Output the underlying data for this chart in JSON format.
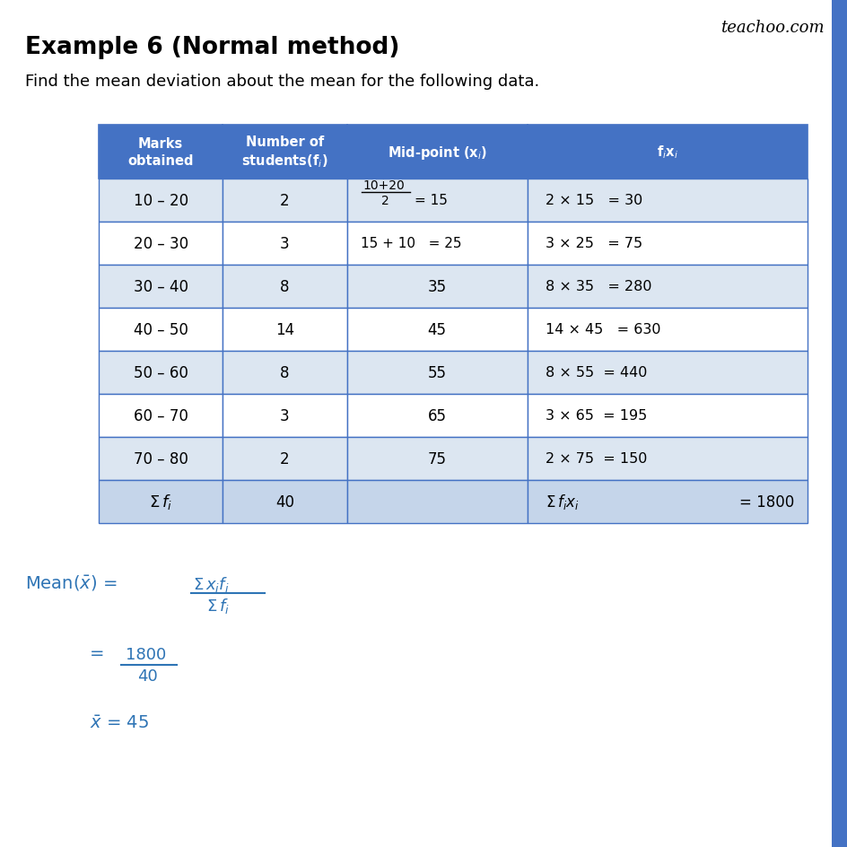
{
  "title": "Example 6 (Normal method)",
  "subtitle": "Find the mean deviation about the mean for the following data.",
  "watermark": "teachoo.com",
  "header_bg": "#4472C4",
  "header_text_color": "#FFFFFF",
  "row_bg_light": "#DCE6F1",
  "row_bg_white": "#FFFFFF",
  "sum_row_bg": "#C5D5EA",
  "border_color": "#4472C4",
  "mean_color": "#2E74B5",
  "right_bar_color": "#4472C4",
  "fig_w": 9.45,
  "fig_h": 9.45,
  "dpi": 100
}
